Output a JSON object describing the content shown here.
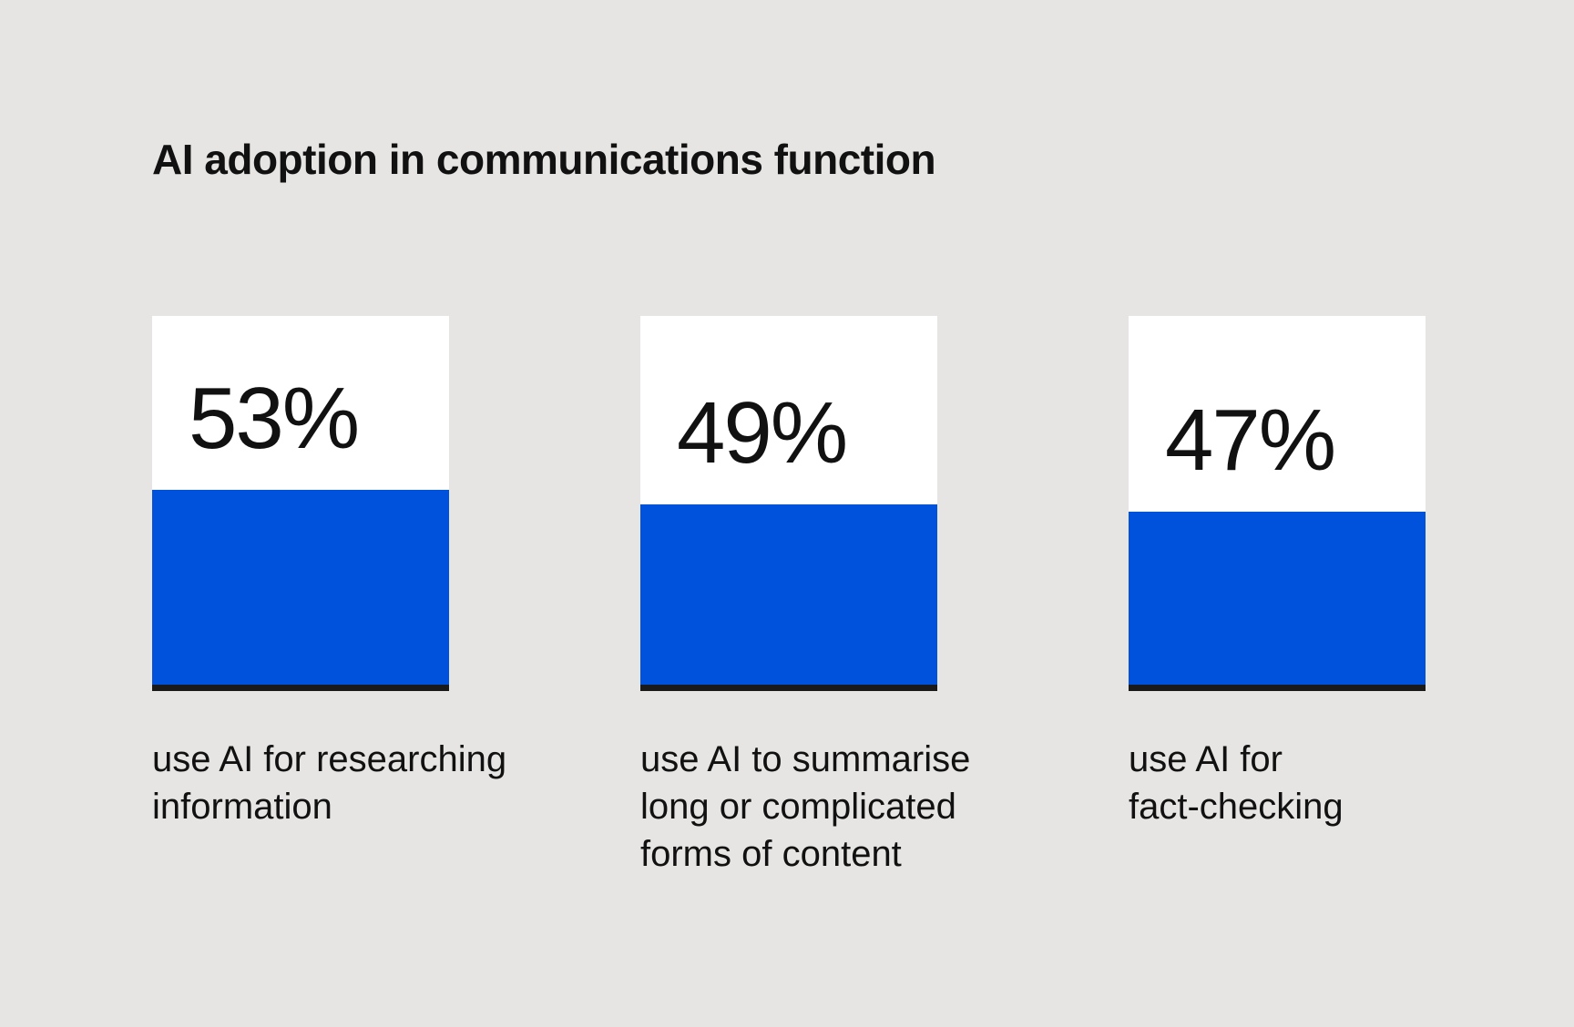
{
  "chart_data": {
    "type": "bar",
    "title": "AI adoption in communications function",
    "categories": [
      "use AI for researching\ninformation",
      "use AI to summarise\nlong or complicated\nforms of content",
      "use AI for\nfact-checking"
    ],
    "values": [
      53,
      49,
      47
    ],
    "value_labels": [
      "53%",
      "49%",
      "47%"
    ],
    "ylim": [
      0,
      100
    ],
    "color": "#0051db"
  }
}
